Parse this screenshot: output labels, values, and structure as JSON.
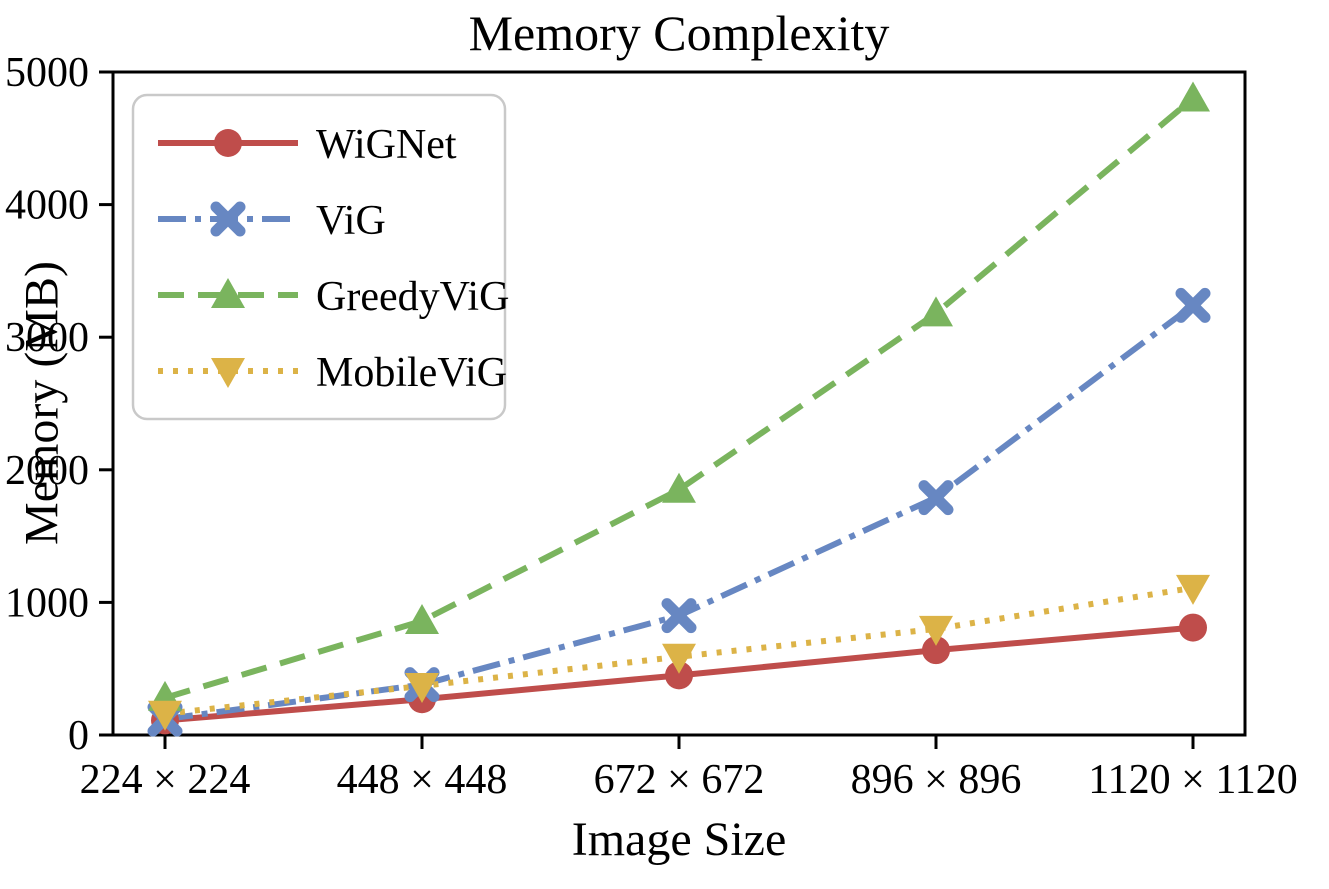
{
  "chart_data": {
    "type": "line",
    "title": "Memory Complexity",
    "xlabel": "Image Size",
    "ylabel": "Memory (MB)",
    "categories": [
      "224 × 224",
      "448 × 448",
      "672 × 672",
      "896 × 896",
      "1120 × 1120"
    ],
    "x_values": [
      224,
      448,
      672,
      896,
      1120
    ],
    "ylim": [
      0,
      5000
    ],
    "yticks": [
      0,
      1000,
      2000,
      3000,
      4000,
      5000
    ],
    "grid": false,
    "legend_position": "upper left",
    "series": [
      {
        "name": "WiGNet",
        "color": "#bf4d4b",
        "linestyle": "solid",
        "marker": "circle",
        "values": [
          110,
          270,
          450,
          640,
          810
        ]
      },
      {
        "name": "ViG",
        "color": "#6787c2",
        "linestyle": "dashdot",
        "marker": "x",
        "values": [
          120,
          380,
          900,
          1790,
          3240
        ]
      },
      {
        "name": "GreedyViG",
        "color": "#7ab45e",
        "linestyle": "dashed",
        "marker": "triangle-up",
        "values": [
          280,
          860,
          1850,
          3180,
          4800
        ]
      },
      {
        "name": "MobileViG",
        "color": "#dcb347",
        "linestyle": "dotted",
        "marker": "triangle-down",
        "values": [
          160,
          370,
          590,
          800,
          1110
        ]
      }
    ]
  }
}
